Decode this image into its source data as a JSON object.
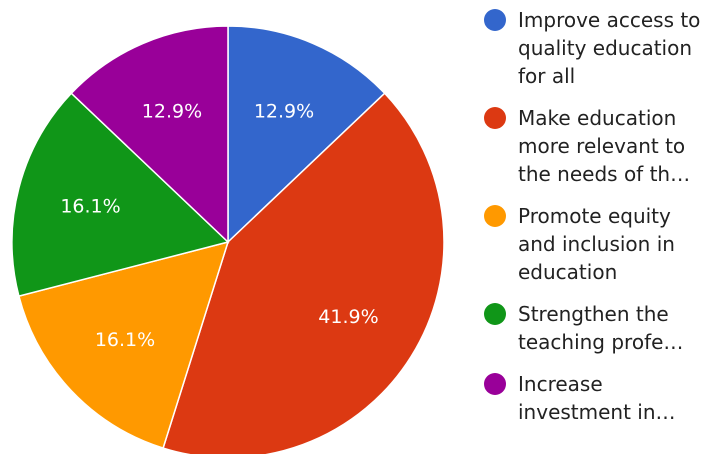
{
  "chart_data": {
    "type": "pie",
    "title": "",
    "categories": [
      "Improve access to quality education for all",
      "Make education more relevant to the needs of th…",
      "Promote equity and inclusion in education",
      "Strengthen the teaching profe…",
      "Increase investment in…"
    ],
    "values": [
      12.9,
      41.9,
      16.1,
      16.1,
      12.9
    ],
    "value_labels": [
      "12.9%",
      "41.9%",
      "16.1%",
      "16.1%",
      "12.9%"
    ],
    "colors": [
      "#3366cc",
      "#dc3912",
      "#ff9900",
      "#109618",
      "#990099"
    ],
    "legend_position": "right",
    "start_angle_deg": 0,
    "direction": "clockwise"
  }
}
